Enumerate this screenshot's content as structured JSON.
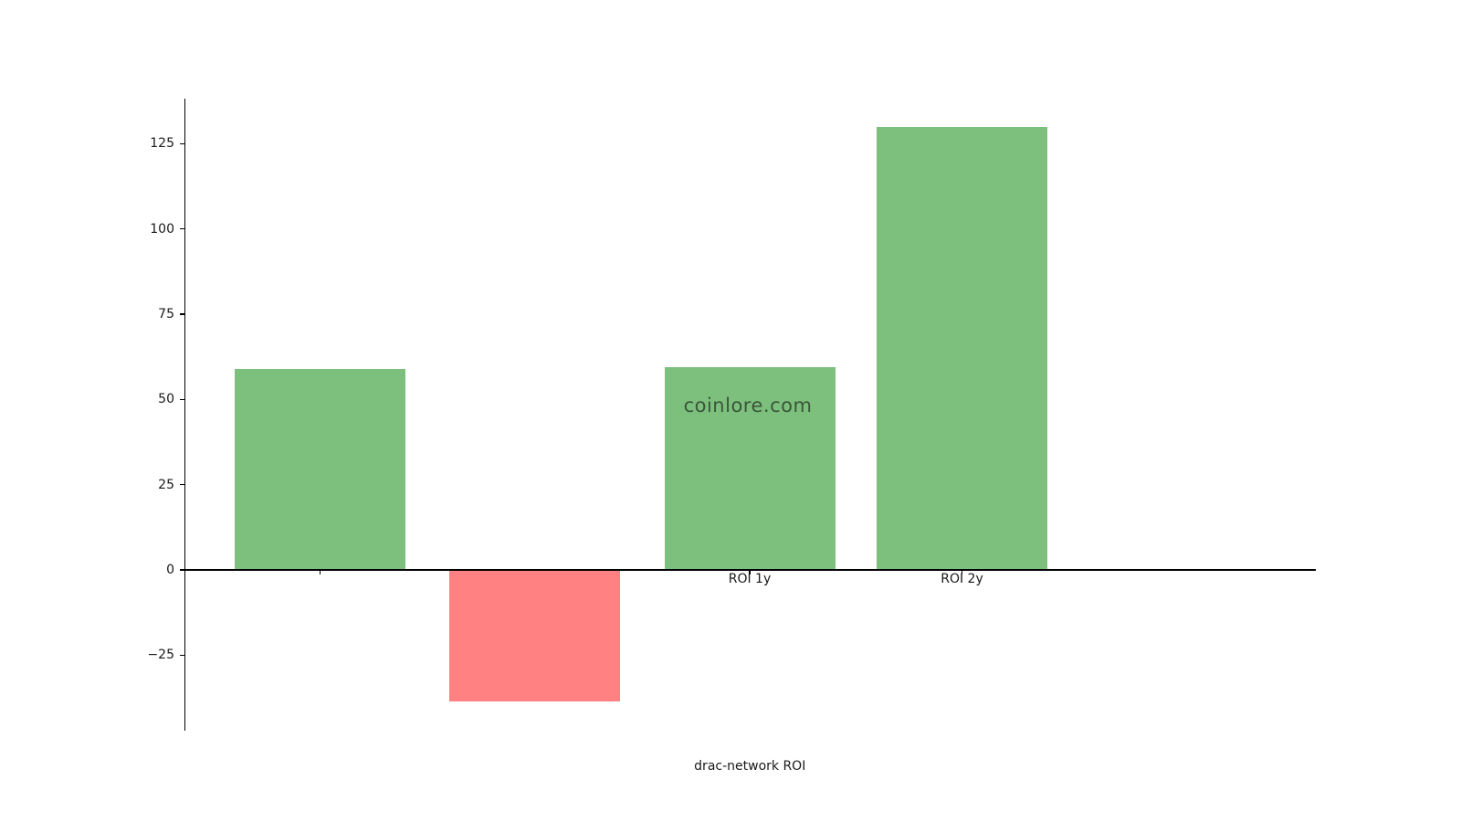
{
  "page": {
    "background_color": "#ffffff"
  },
  "watermark": {
    "text": "coinlore.com",
    "color": "rgba(0,0,0,0.55)"
  },
  "chart_data": {
    "type": "bar",
    "title": "",
    "xlabel": "drac-network ROI",
    "ylabel": "",
    "categories": [
      "",
      "",
      "ROI 1y",
      "ROI 2y"
    ],
    "values": [
      59,
      -38.5,
      59.5,
      130
    ],
    "bar_colors": [
      "#7dbf7d",
      "#ff8181",
      "#7dbf7d",
      "#7dbf7d"
    ],
    "positive_color": "#7dbf7d",
    "negative_color": "#ff8181",
    "yticks": [
      125,
      100,
      75,
      50,
      25,
      0,
      -25
    ],
    "ytick_labels": [
      "125",
      "100",
      "75",
      "50",
      "25",
      "0",
      "−25"
    ],
    "ylim": [
      -47.1,
      138.3
    ],
    "grid": false,
    "legend": null,
    "axis_color": "#000000",
    "text_color": "#1a1a1a"
  }
}
